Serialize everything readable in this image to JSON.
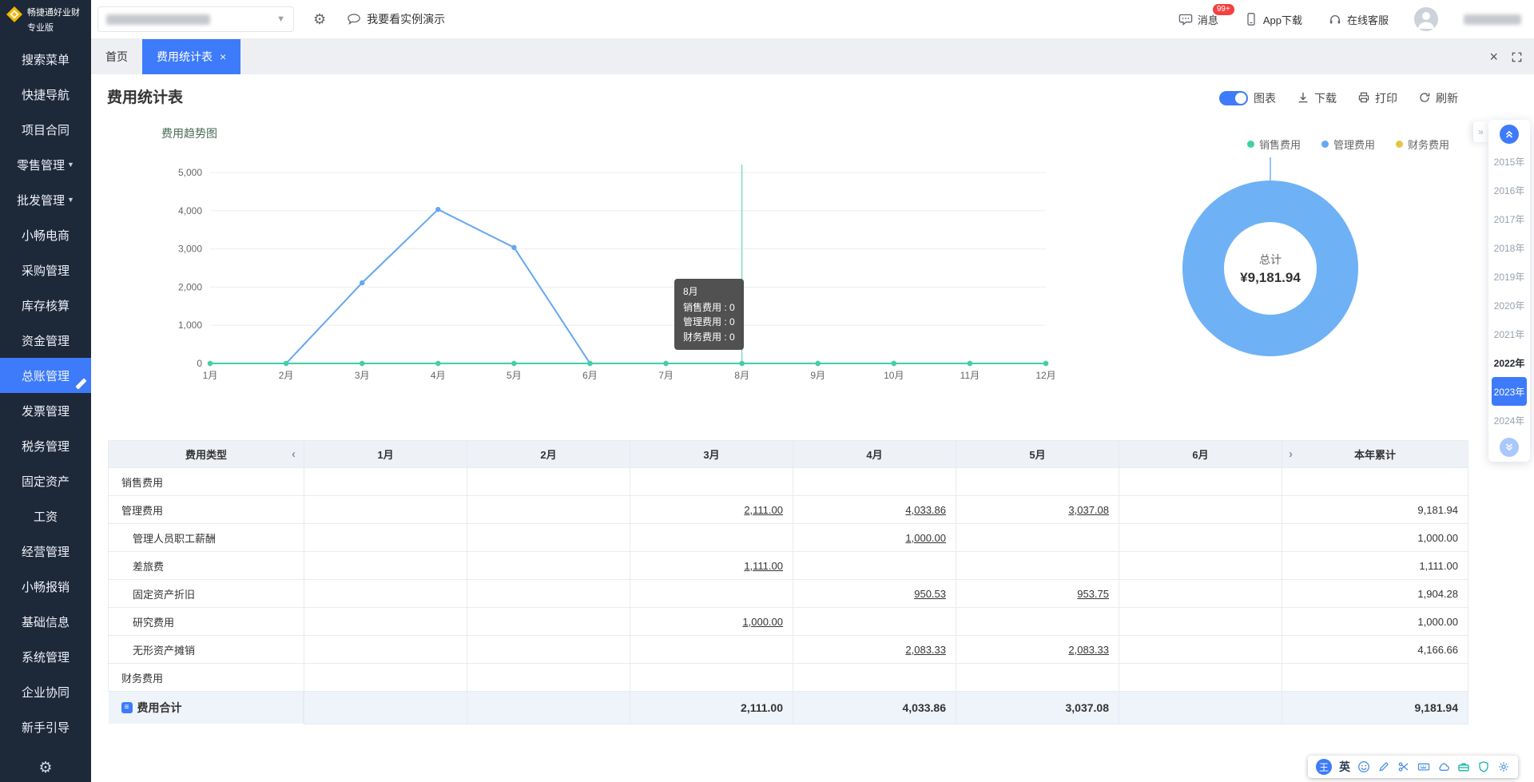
{
  "app": {
    "logo_title": "畅捷通好业财",
    "logo_subtitle": "专业版"
  },
  "sidebar": {
    "items": [
      {
        "label": "搜索菜单"
      },
      {
        "label": "快捷导航"
      },
      {
        "label": "项目合同"
      },
      {
        "label": "零售管理",
        "expandable": true
      },
      {
        "label": "批发管理",
        "expandable": true
      },
      {
        "label": "小畅电商"
      },
      {
        "label": "采购管理"
      },
      {
        "label": "库存核算"
      },
      {
        "label": "资金管理"
      },
      {
        "label": "总账管理",
        "active": true
      },
      {
        "label": "发票管理"
      },
      {
        "label": "税务管理"
      },
      {
        "label": "固定资产"
      },
      {
        "label": "工资"
      },
      {
        "label": "经营管理"
      },
      {
        "label": "小畅报销"
      },
      {
        "label": "基础信息"
      },
      {
        "label": "系统管理"
      },
      {
        "label": "企业协同"
      },
      {
        "label": "新手引导"
      }
    ]
  },
  "topbar": {
    "demo_label": "我要看实例演示",
    "messages_label": "消息",
    "messages_badge": "99+",
    "app_download_label": "App下载",
    "service_label": "在线客服"
  },
  "tabbar": {
    "tabs": [
      {
        "label": "首页",
        "active": false,
        "closable": false
      },
      {
        "label": "费用统计表",
        "active": true,
        "closable": true
      }
    ]
  },
  "page": {
    "title": "费用统计表",
    "toolbar": {
      "chart_toggle": "图表",
      "download": "下载",
      "print": "打印",
      "refresh": "刷新",
      "toggle_on": true
    }
  },
  "chart_data": [
    {
      "type": "line",
      "title": "费用趋势图",
      "categories": [
        "1月",
        "2月",
        "3月",
        "4月",
        "5月",
        "6月",
        "7月",
        "8月",
        "9月",
        "10月",
        "11月",
        "12月"
      ],
      "series": [
        {
          "name": "财务费用",
          "color": "#e6c448",
          "values": [
            0,
            0,
            0,
            0,
            0,
            0,
            0,
            0,
            0,
            0,
            0,
            0
          ]
        },
        {
          "name": "管理费用",
          "color": "#64a7f3",
          "values": [
            null,
            0,
            2111.0,
            4033.86,
            3037.08,
            0,
            0,
            0,
            0,
            0,
            0,
            0
          ]
        },
        {
          "name": "销售费用",
          "color": "#3fd0a6",
          "values": [
            0,
            0,
            0,
            0,
            0,
            0,
            0,
            0,
            0,
            0,
            0,
            0
          ]
        }
      ],
      "legend_order": [
        "销售费用",
        "管理费用",
        "财务费用"
      ],
      "ylim": [
        0,
        5000
      ],
      "ytick_labels": [
        "0",
        "1,000",
        "2,000",
        "3,000",
        "4,000",
        "5,000"
      ],
      "grid": true,
      "legend_position": "top-right",
      "tooltip": {
        "title": "8月",
        "month_index": 7,
        "rows": [
          "销售费用 : 0",
          "管理费用 : 0",
          "财务费用 : 0"
        ]
      }
    },
    {
      "type": "pie",
      "center_label": "总计",
      "center_value": "¥9,181.94",
      "slices": [
        {
          "name": "管理费用",
          "value": 9181.94,
          "color": "#6fb1f5"
        }
      ]
    }
  ],
  "year_panel": {
    "years": [
      "2015年",
      "2016年",
      "2017年",
      "2018年",
      "2019年",
      "2020年",
      "2021年",
      "2022年",
      "2023年",
      "2024年"
    ],
    "selected_year": "2023年",
    "highlighted_year": "2022年"
  },
  "table": {
    "col_headers": [
      "费用类型",
      "1月",
      "2月",
      "3月",
      "4月",
      "5月",
      "6月",
      "本年累计"
    ],
    "prev_arrow": "‹",
    "next_arrow": "›",
    "total_icon_glyph": "≡",
    "rows": [
      {
        "label": "销售费用",
        "indent": 0,
        "cells": [
          "",
          "",
          "",
          "",
          "",
          "",
          ""
        ]
      },
      {
        "label": "管理费用",
        "indent": 0,
        "cells": [
          "",
          "",
          "2,111.00",
          "4,033.86",
          "3,037.08",
          "",
          "9,181.94"
        ],
        "link_cols": [
          2,
          3,
          4
        ]
      },
      {
        "label": "管理人员职工薪酬",
        "indent": 1,
        "cells": [
          "",
          "",
          "",
          "1,000.00",
          "",
          "",
          "1,000.00"
        ],
        "link_cols": [
          3
        ]
      },
      {
        "label": "差旅费",
        "indent": 1,
        "cells": [
          "",
          "",
          "1,111.00",
          "",
          "",
          "",
          "1,111.00"
        ],
        "link_cols": [
          2
        ]
      },
      {
        "label": "固定资产折旧",
        "indent": 1,
        "cells": [
          "",
          "",
          "",
          "950.53",
          "953.75",
          "",
          "1,904.28"
        ],
        "link_cols": [
          3,
          4
        ]
      },
      {
        "label": "研究费用",
        "indent": 1,
        "cells": [
          "",
          "",
          "1,000.00",
          "",
          "",
          "",
          "1,000.00"
        ],
        "link_cols": [
          2
        ]
      },
      {
        "label": "无形资产摊销",
        "indent": 1,
        "cells": [
          "",
          "",
          "",
          "2,083.33",
          "2,083.33",
          "",
          "4,166.66"
        ],
        "link_cols": [
          3,
          4
        ]
      },
      {
        "label": "财务费用",
        "indent": 0,
        "cells": [
          "",
          "",
          "",
          "",
          "",
          "",
          ""
        ]
      },
      {
        "label": "费用合计",
        "indent": 0,
        "total": true,
        "cells": [
          "",
          "",
          "2,111.00",
          "4,033.86",
          "3,037.08",
          "",
          "9,181.94"
        ]
      }
    ]
  },
  "ime_bar": {
    "mode_badge": "王",
    "lang_label": "英",
    "icons": [
      "emoji-icon",
      "pencil-icon",
      "scissors-icon",
      "keyboard-icon",
      "cloud-icon",
      "toolbox-icon",
      "shield-icon",
      "gear-icon"
    ]
  },
  "colors": {
    "accent_blue": "#3e7bfa",
    "sidebar_bg": "#1d2839",
    "badge_red": "#f53f3f",
    "hover_line": "#4ecfa9"
  }
}
